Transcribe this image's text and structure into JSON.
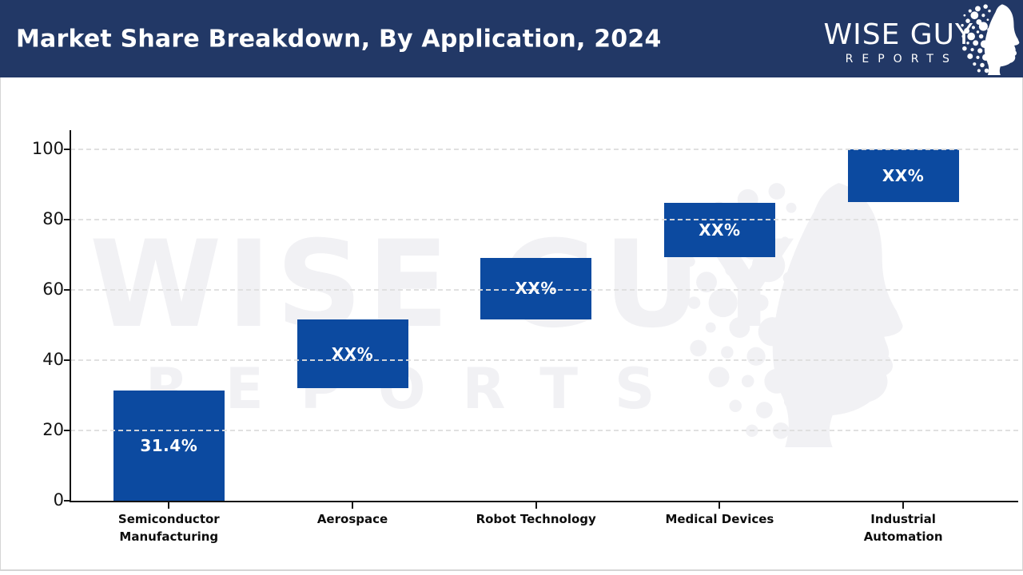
{
  "header": {
    "title": "Market Share Breakdown, By Application, 2024",
    "logo": {
      "brand_line1": "WISE GUY",
      "brand_line2": "REPORTS"
    },
    "colors": {
      "header_bg": "#223866"
    }
  },
  "watermark": {
    "line1": "WISE GUY",
    "line2": "REPORTS"
  },
  "chart_data": {
    "type": "bar",
    "subtype": "waterfall",
    "title": "Market Share Breakdown, By Application, 2024",
    "categories": [
      "Semiconductor Manufacturing",
      "Aerospace",
      "Robot Technology",
      "Medical Devices",
      "Industrial Automation"
    ],
    "series": [
      {
        "name": "Market share (%)",
        "segments": [
          {
            "category": "Semiconductor Manufacturing",
            "start": 0,
            "end": 31.4,
            "label": "31.4%"
          },
          {
            "category": "Aerospace",
            "start": 32.0,
            "end": 51.5,
            "label": "XX%"
          },
          {
            "category": "Robot Technology",
            "start": 51.7,
            "end": 69.2,
            "label": "XX%"
          },
          {
            "category": "Medical Devices",
            "start": 69.3,
            "end": 84.8,
            "label": "XX%"
          },
          {
            "category": "Industrial Automation",
            "start": 84.9,
            "end": 100.0,
            "label": "XX%"
          }
        ]
      }
    ],
    "xlabel": "",
    "ylabel": "",
    "yticks": [
      0,
      20,
      40,
      60,
      80,
      100
    ],
    "ylim": [
      0,
      105
    ],
    "grid": "horizontal-dashed",
    "legend": "none",
    "colors": {
      "bar": "#0c4aa0",
      "bar_label": "#ffffff",
      "grid": "#dedede",
      "axis": "#141414",
      "tick_label": "#141414"
    }
  }
}
